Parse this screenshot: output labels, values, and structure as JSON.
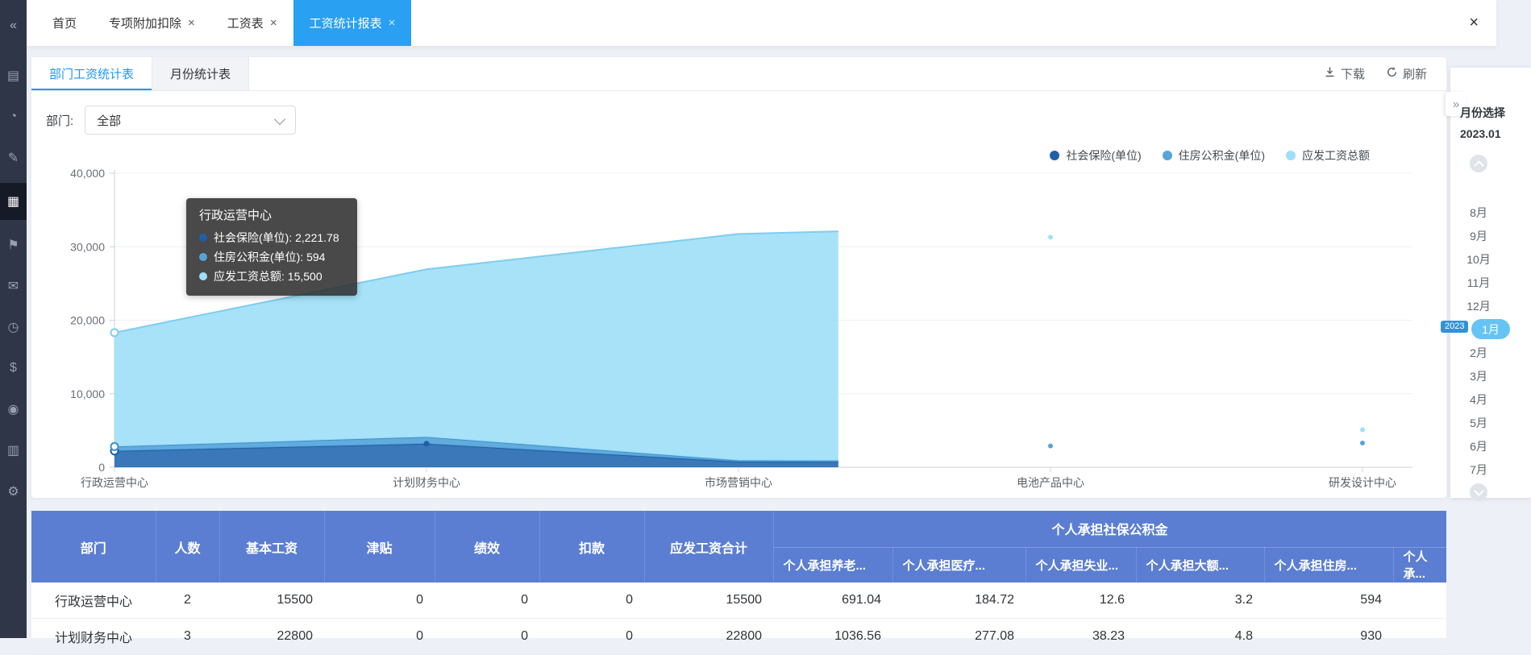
{
  "tabbar": {
    "close_all_icon": "×",
    "tabs": [
      {
        "name": "tab-home",
        "label": "首页",
        "closable": false,
        "active": false
      },
      {
        "name": "tab-special-deduction",
        "label": "专项附加扣除",
        "closable": true,
        "active": false
      },
      {
        "name": "tab-salary-sheet",
        "label": "工资表",
        "closable": true,
        "active": false
      },
      {
        "name": "tab-salary-report",
        "label": "工资统计报表",
        "closable": true,
        "active": true
      }
    ]
  },
  "sidebar": {
    "icons": [
      {
        "name": "collapse-sidebar-icon",
        "glyph": "«",
        "active": false
      },
      {
        "name": "home-icon",
        "glyph": "▤",
        "active": false
      },
      {
        "name": "ledger-icon",
        "glyph": "◔",
        "active": false
      },
      {
        "name": "edit-icon",
        "glyph": "✎",
        "active": false
      },
      {
        "name": "report-icon",
        "glyph": "▦",
        "active": true
      },
      {
        "name": "flag-icon",
        "glyph": "⚑",
        "active": false
      },
      {
        "name": "mail-icon",
        "glyph": "✉",
        "active": false
      },
      {
        "name": "clock-icon",
        "glyph": "◷",
        "active": false
      },
      {
        "name": "money-icon",
        "glyph": "$",
        "active": false
      },
      {
        "name": "target-icon",
        "glyph": "◉",
        "active": false
      },
      {
        "name": "grid-icon",
        "glyph": "▥",
        "active": false
      },
      {
        "name": "settings-icon",
        "glyph": "⚙",
        "active": false
      }
    ]
  },
  "subtabs": [
    {
      "name": "subtab-dept-salary",
      "label": "部门工资统计表",
      "active": true
    },
    {
      "name": "subtab-month-stats",
      "label": "月份统计表",
      "active": false
    }
  ],
  "toolbar": {
    "download_label": "下载",
    "refresh_label": "刷新"
  },
  "filter": {
    "label": "部门:",
    "value": "全部"
  },
  "legend": [
    {
      "label": "社会保险(单位)",
      "color": "#1f5fa8"
    },
    {
      "label": "住房公积金(单位)",
      "color": "#55a4da"
    },
    {
      "label": "应发工资总额",
      "color": "#9fdef7"
    }
  ],
  "tooltip": {
    "title": "行政运营中心",
    "rows": [
      {
        "label": "社会保险(单位)",
        "value": "2,221.78",
        "color": "#1f5fa8"
      },
      {
        "label": "住房公积金(单位)",
        "value": "594",
        "color": "#55a4da"
      },
      {
        "label": "应发工资总额",
        "value": "15,500",
        "color": "#9fdef7"
      }
    ]
  },
  "chart_data": {
    "type": "area",
    "stacked": true,
    "categories": [
      "行政运营中心",
      "计划财务中心",
      "市场营销中心",
      "电池产品中心",
      "研发设计中心"
    ],
    "series": [
      {
        "name": "社会保险(单位)",
        "fill": "#2a6cb3",
        "line": "#1f5fa8",
        "values": [
          2221.78,
          3200,
          750,
          null,
          null
        ]
      },
      {
        "name": "住房公积金(单位)",
        "fill": "#55a4da",
        "line": "#3d92cf",
        "values": [
          594,
          930,
          190,
          null,
          null
        ]
      },
      {
        "name": "应发工资总额",
        "fill": "#a0e0f8",
        "line": "#7ecdf0",
        "values": [
          15500,
          22800,
          30800,
          null,
          null
        ]
      }
    ],
    "ylim": [
      0,
      40000
    ],
    "yticks": [
      "0",
      "10,000",
      "20,000",
      "30,000",
      "40,000"
    ],
    "legend_position": "top-right",
    "area_cut": {
      "x_units": 2.32,
      "values": [
        730,
        190,
        31180
      ]
    },
    "stray_points": [
      {
        "x_units": 3,
        "value": 31300,
        "color": "#a0e0f8"
      },
      {
        "x_units": 3,
        "value": 2900,
        "color": "#55a4da"
      },
      {
        "x_units": 4,
        "value": 5100,
        "color": "#a0e0f8"
      },
      {
        "x_units": 4,
        "value": 3300,
        "color": "#55a4da"
      }
    ]
  },
  "month_panel": {
    "expand_icon": "»",
    "title": "月份选择",
    "current": "2023.01",
    "year_badge": "2023",
    "active_month": "1月",
    "months": [
      "8月",
      "9月",
      "10月",
      "11月",
      "12月",
      "1月",
      "2月",
      "3月",
      "4月",
      "5月",
      "6月",
      "7月"
    ]
  },
  "table": {
    "group_header": "个人承担社保公积金",
    "columns": [
      "部门",
      "人数",
      "基本工资",
      "津贴",
      "绩效",
      "扣款",
      "应发工资合计"
    ],
    "sub_columns": [
      "个人承担养老...",
      "个人承担医疗...",
      "个人承担失业...",
      "个人承担大额...",
      "个人承担住房...",
      "个人承..."
    ],
    "rows": [
      [
        "行政运营中心",
        "2",
        "15500",
        "0",
        "0",
        "0",
        "15500",
        "691.04",
        "184.72",
        "12.6",
        "3.2",
        "594"
      ],
      [
        "计划财务中心",
        "3",
        "22800",
        "0",
        "0",
        "0",
        "22800",
        "1036.56",
        "277.08",
        "38.23",
        "4.8",
        "930"
      ]
    ]
  }
}
